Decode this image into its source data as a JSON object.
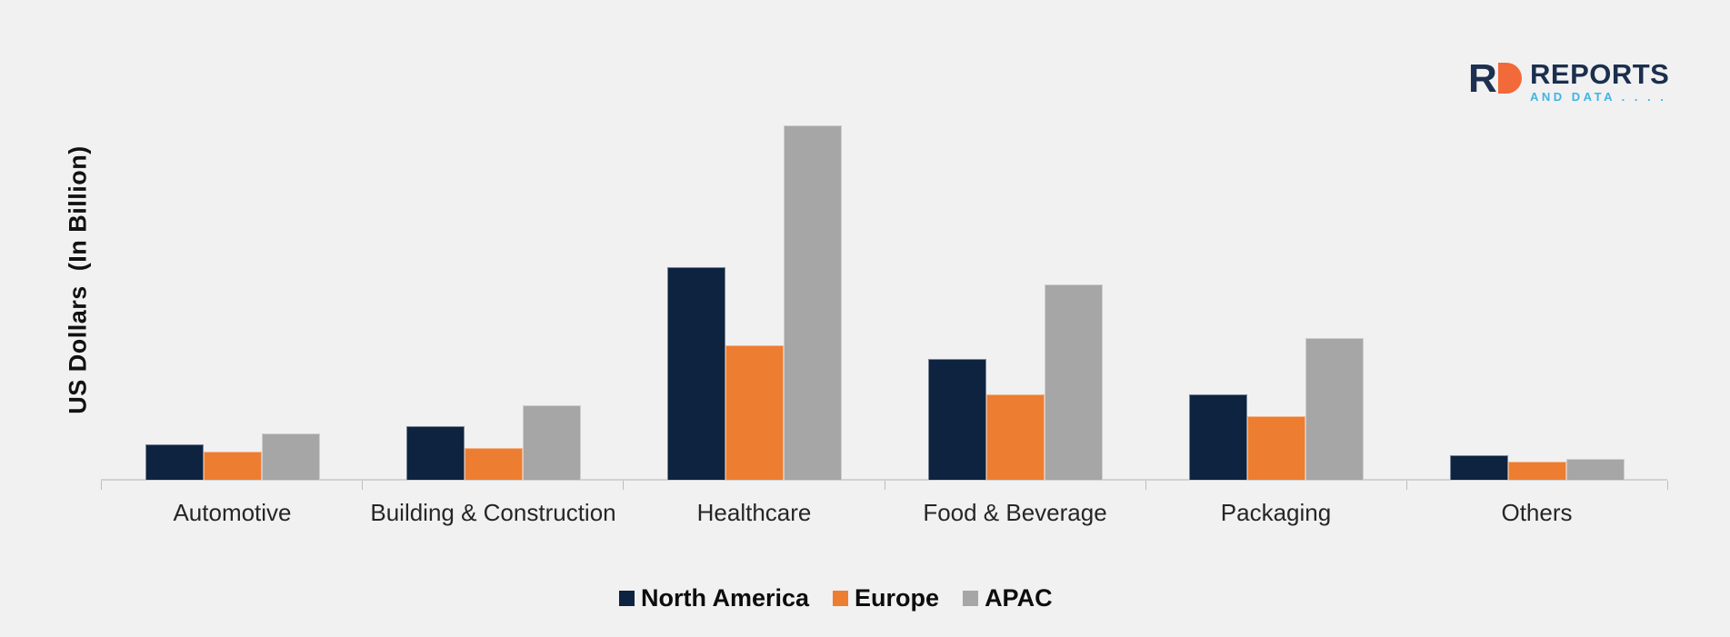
{
  "background_color": "#f1f1f2",
  "logo": {
    "mark_letter": "R",
    "brand_main": "REPORTS",
    "brand_tagline": "AND DATA . . . .",
    "mark_navy": "#1c3050",
    "mark_orange": "#f2693a",
    "tagline_blue": "#3fb3e5"
  },
  "chart_data": {
    "type": "bar",
    "title": "",
    "xlabel": "",
    "ylabel": "US Dollars  (In Billion)",
    "categories": [
      "Automotive",
      "Building & Construction",
      "Healthcare",
      "Food & Beverage",
      "Packaging",
      "Others"
    ],
    "series": [
      {
        "name": "North America",
        "color": "#0d2340",
        "values": [
          10,
          15,
          60,
          34,
          24,
          7
        ]
      },
      {
        "name": "Europe",
        "color": "#ed7d31",
        "values": [
          8,
          9,
          38,
          24,
          18,
          5
        ]
      },
      {
        "name": "APAC",
        "color": "#a6a6a6",
        "values": [
          13,
          21,
          100,
          55,
          40,
          6
        ]
      }
    ],
    "ylim": [
      0,
      107
    ],
    "y_tick_labels_visible": false,
    "grid": false,
    "legend_position": "bottom",
    "value_note": "y-axis has no tick labels; values are relative units normalized so Healthcare APAC = 100",
    "axis_color": "#d2d2d2",
    "tick_color": "#bdbdbd"
  }
}
